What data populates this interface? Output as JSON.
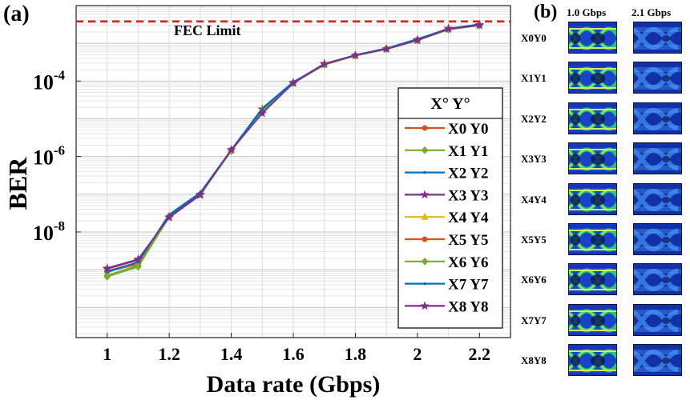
{
  "panel_a_label": "(a)",
  "panel_b_label": "(b)",
  "chart_data": {
    "type": "line",
    "xlabel": "Data rate (Gbps)",
    "ylabel": "BER",
    "x": [
      1.0,
      1.1,
      1.2,
      1.3,
      1.4,
      1.5,
      1.6,
      1.7,
      1.8,
      1.9,
      2.0,
      2.1,
      2.2
    ],
    "xlim": [
      0.9,
      2.3
    ],
    "ylim_log10": [
      -10.8,
      -2.0
    ],
    "xticks": [
      1.0,
      1.2,
      1.4,
      1.6,
      1.8,
      2.0,
      2.2
    ],
    "xtick_labels": [
      "1",
      "1.2",
      "1.4",
      "1.6",
      "1.8",
      "2",
      "2.2"
    ],
    "yticks_log10": [
      -8,
      -6,
      -4
    ],
    "ytick_labels": [
      {
        "base": "10",
        "exp": "-8"
      },
      {
        "base": "10",
        "exp": "-6"
      },
      {
        "base": "10",
        "exp": "-4"
      }
    ],
    "grid": true,
    "fec_limit": {
      "label": "FEC Limit",
      "value": 0.0038,
      "color": "#e31a1c"
    },
    "legend": {
      "title": "X° Y°",
      "placement": "right"
    },
    "series": [
      {
        "name": "X0 Y0",
        "color": "#d95319",
        "marker": "circle",
        "values": [
          9e-10,
          1.4e-09,
          2.6e-08,
          1e-07,
          1.5e-06,
          1.6e-05,
          9e-05,
          0.00028,
          0.00048,
          0.00072,
          0.00125,
          0.0024,
          0.0031
        ]
      },
      {
        "name": "X1 Y1",
        "color": "#77ac30",
        "marker": "diamond",
        "values": [
          6.5e-10,
          1.2e-09,
          2.5e-08,
          1e-07,
          1.4e-06,
          1.5e-05,
          8.8e-05,
          0.00027,
          0.00047,
          0.0007,
          0.0012,
          0.0023,
          0.003
        ]
      },
      {
        "name": "X2 Y2",
        "color": "#0072bd",
        "marker": "dot",
        "values": [
          8.5e-10,
          1.6e-09,
          2.9e-08,
          1.1e-07,
          1.5e-06,
          1.9e-05,
          9.5e-05,
          0.00028,
          0.00049,
          0.00073,
          0.0013,
          0.0024,
          0.0032
        ]
      },
      {
        "name": "X3 Y3",
        "color": "#7e2f8e",
        "marker": "star",
        "values": [
          1.05e-09,
          1.8e-09,
          2.4e-08,
          9.5e-08,
          1.5e-06,
          1.8e-05,
          9.2e-05,
          0.00029,
          0.00048,
          0.00071,
          0.00125,
          0.0025,
          0.0031
        ]
      },
      {
        "name": "X4 Y4",
        "color": "#edb120",
        "marker": "triangle",
        "values": [
          9.5e-10,
          1.5e-09,
          2.7e-08,
          1e-07,
          1.5e-06,
          1.7e-05,
          9e-05,
          0.00028,
          0.00048,
          0.00072,
          0.00125,
          0.0024,
          0.0031
        ]
      },
      {
        "name": "X5 Y5",
        "color": "#d95319",
        "marker": "circle",
        "values": [
          9.2e-10,
          1.5e-09,
          2.6e-08,
          1e-07,
          1.5e-06,
          1.7e-05,
          9.1e-05,
          0.00028,
          0.00048,
          0.00072,
          0.00125,
          0.0024,
          0.0031
        ]
      },
      {
        "name": "X6 Y6",
        "color": "#77ac30",
        "marker": "diamond",
        "values": [
          7e-10,
          1.3e-09,
          2.5e-08,
          1e-07,
          1.4e-06,
          1.6e-05,
          8.9e-05,
          0.00027,
          0.00047,
          0.0007,
          0.0012,
          0.00235,
          0.003
        ]
      },
      {
        "name": "X7 Y7",
        "color": "#0072bd",
        "marker": "dot",
        "values": [
          8.8e-10,
          1.6e-09,
          2.8e-08,
          1.05e-07,
          1.5e-06,
          1.8e-05,
          9.3e-05,
          0.00028,
          0.00049,
          0.00073,
          0.0013,
          0.00245,
          0.0032
        ]
      },
      {
        "name": "X8 Y8",
        "color": "#7e2f8e",
        "marker": "star",
        "values": [
          1.1e-09,
          1.9e-09,
          2.5e-08,
          1e-07,
          1.5e-06,
          1.4e-05,
          8.8e-05,
          0.00028,
          0.00048,
          0.00071,
          0.0012,
          0.0024,
          0.003
        ]
      }
    ]
  },
  "eye_diagrams": {
    "columns": [
      "1.0 Gbps",
      "2.1 Gbps"
    ],
    "rows": [
      "X0Y0",
      "X1Y1",
      "X2Y2",
      "X3Y3",
      "X4Y4",
      "X5Y5",
      "X6Y6",
      "X7Y7",
      "X8Y8"
    ]
  }
}
